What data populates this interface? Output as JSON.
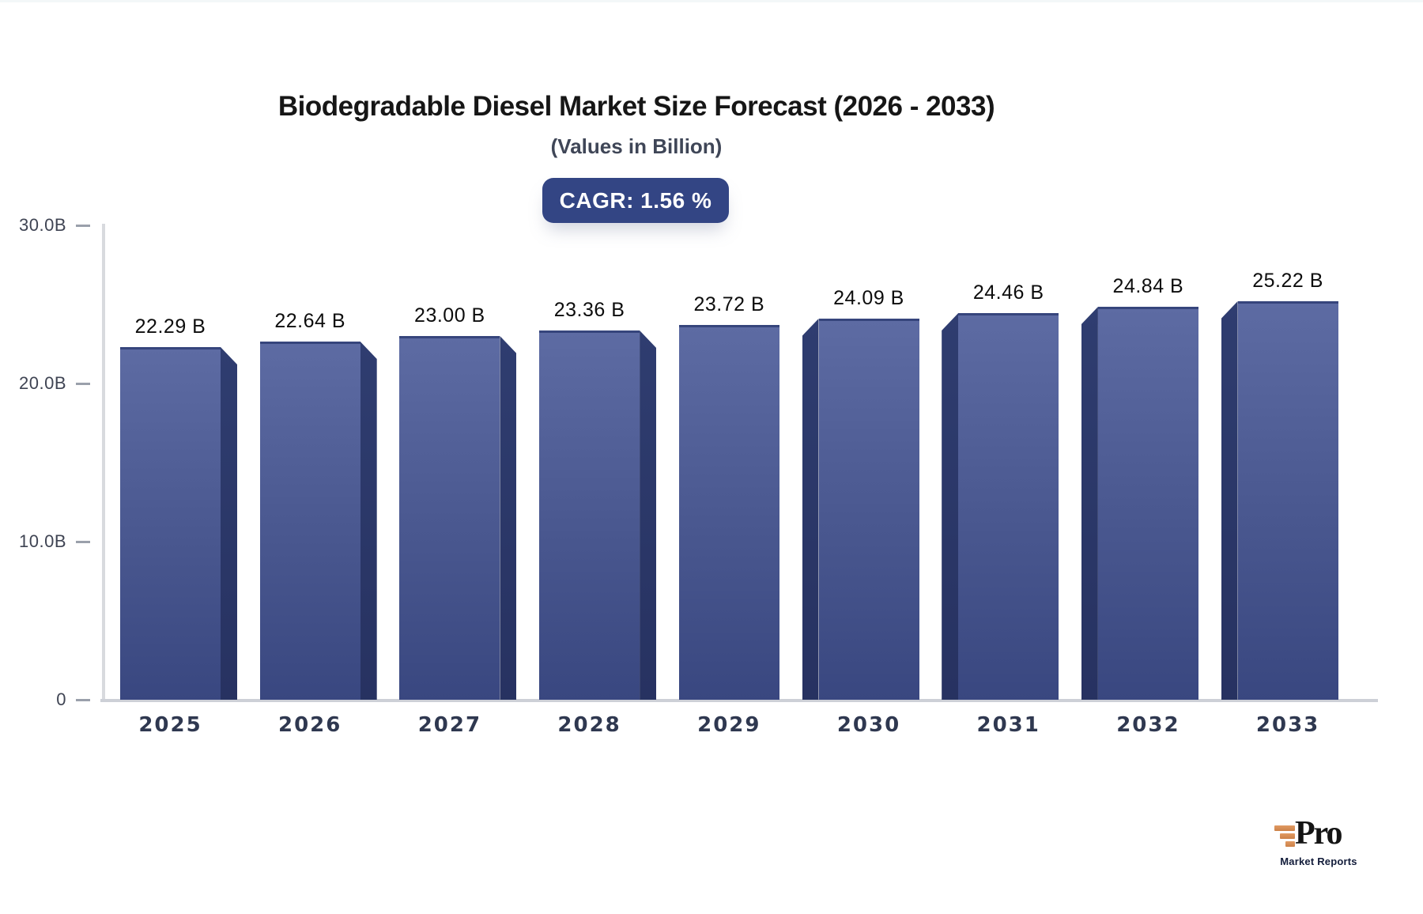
{
  "header": {
    "title": "Biodegradable Diesel Market Size Forecast (2026 - 2033)",
    "subtitle": "(Values in Billion)",
    "badge": {
      "label": "CAGR: 1.56 %",
      "bg_color": "#334584",
      "text_color": "#ffffff"
    }
  },
  "chart_data": {
    "type": "bar",
    "title": "Biodegradable Diesel Market Size Forecast (2026 - 2033)",
    "subtitle": "(Values in Billion)",
    "cagr_label": "CAGR: 1.56 %",
    "categories": [
      "2025",
      "2026",
      "2027",
      "2028",
      "2029",
      "2030",
      "2031",
      "2032",
      "2033"
    ],
    "values": [
      22.29,
      22.64,
      23.0,
      23.36,
      23.72,
      24.09,
      24.46,
      24.84,
      25.22
    ],
    "value_labels": [
      "22.29 B",
      "22.64 B",
      "23.00 B",
      "23.36 B",
      "23.72 B",
      "24.09 B",
      "24.46 B",
      "24.84 B",
      "25.22 B"
    ],
    "y_axis_ticks": [
      {
        "label": "30.0B",
        "value": 30
      },
      {
        "label": "20.0B",
        "value": 20
      },
      {
        "label": "10.0B",
        "value": 10
      },
      {
        "label": "0",
        "value": 0
      }
    ],
    "ylim": [
      0,
      30
    ],
    "xlabel": "",
    "ylabel": "",
    "grid": false,
    "legend": false,
    "style": "3d-bars-center-perspective",
    "bar_color_top": "#5d6ba3",
    "bar_color_bottom": "#394780",
    "bar_side_color": "#2c3a6b",
    "axis_color": "#d8dade"
  },
  "footer": {
    "logo": {
      "text": "Pro",
      "subtext": "Market Reports",
      "bar_color": "#d78e54"
    }
  }
}
